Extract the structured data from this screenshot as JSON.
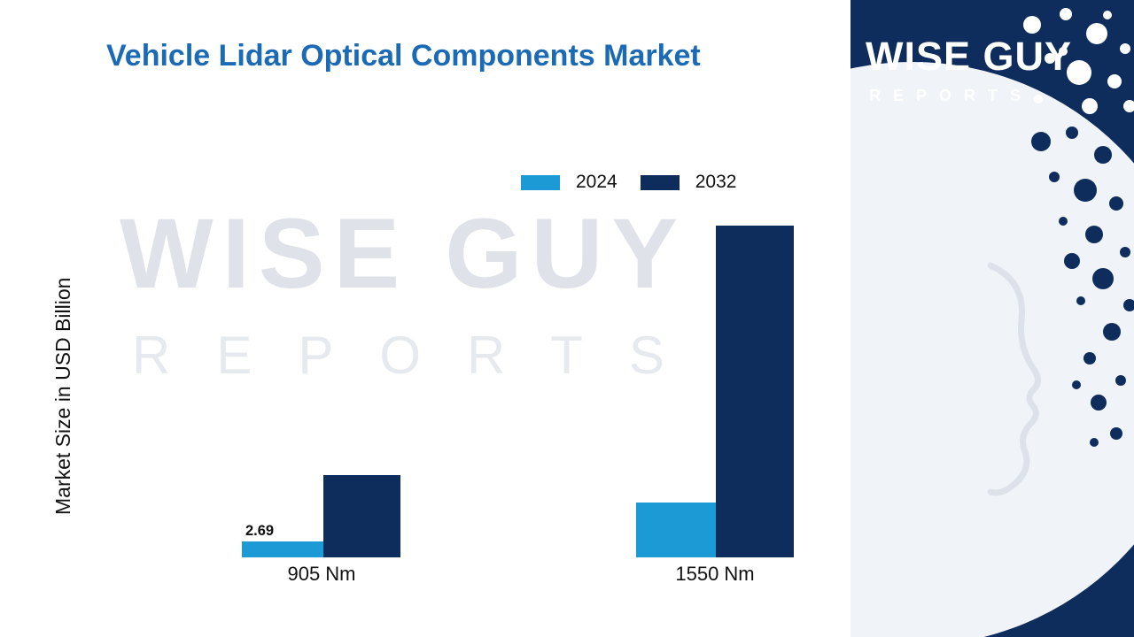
{
  "header": {
    "title": "Vehicle Lidar Optical Components Market",
    "title_color": "#1a6ab5"
  },
  "brand": {
    "line1": "WISE GUY",
    "line2": "REPORTS",
    "panel_color": "#0e2d5c",
    "text_color": "#ffffff"
  },
  "watermark": {
    "line1": "WISE GUY",
    "line2": "REPORTS"
  },
  "chart_data": {
    "type": "bar",
    "title": "Vehicle Lidar Optical Components Market",
    "ylabel": "Market Size in USD Billion",
    "xlabel": "",
    "categories": [
      "905 Nm",
      "1550 Nm"
    ],
    "series": [
      {
        "name": "2024",
        "color": "#1b9ad6",
        "values": [
          2.69,
          9.3
        ]
      },
      {
        "name": "2032",
        "color": "#0e2d5c",
        "values": [
          13.9,
          56.0
        ]
      }
    ],
    "ylim": [
      0,
      60
    ],
    "grid": false,
    "legend_position": "top-center",
    "visible_data_labels": [
      {
        "series": "2024",
        "category": "905 Nm",
        "label": "2.69"
      }
    ]
  }
}
